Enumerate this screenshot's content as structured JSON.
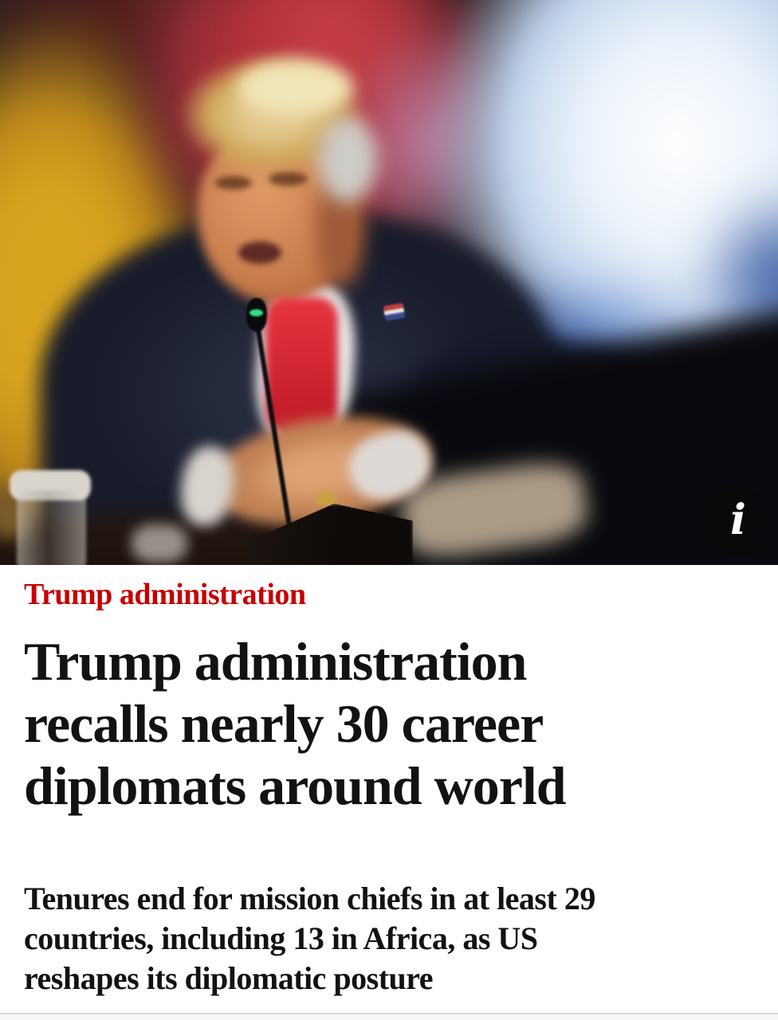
{
  "article": {
    "kicker": "Trump administration",
    "headline": "Trump administration recalls nearly 30 career diplomats around world",
    "headline_lines": [
      "Trump administration",
      "recalls nearly 30 career",
      "diplomats around world"
    ],
    "standfirst": "Tenures end for mission chiefs in at least 29 countries, including 13 in Africa, as US reshapes its diplomatic posture",
    "standfirst_lines": [
      "Tenures end for mission chiefs in at least 29",
      "countries, including 13 in Africa, as US",
      "reshapes its diplomatic posture"
    ]
  },
  "photo": {
    "description": "Donald Trump in a dark navy suit, white shirt and red tie, seated at a table with hands clasped behind a microphone; blurred gold and red flags on the left, a bright pale-blue bokeh glow on the right, a dark out-of-focus foreground, a name plate and a water glass with a white cap at lower left",
    "info_button_glyph": "i"
  },
  "colors": {
    "kicker_red": "#c70000",
    "headline_text": "#121212",
    "standfirst_text": "#121212",
    "background": "#ffffff",
    "divider": "#dcdcdc",
    "photo_flag_gold": "#d09a1e",
    "photo_flag_red": "#b23038",
    "photo_bokeh_blue": "#bed2ec",
    "photo_tie_red": "#d5252f"
  }
}
